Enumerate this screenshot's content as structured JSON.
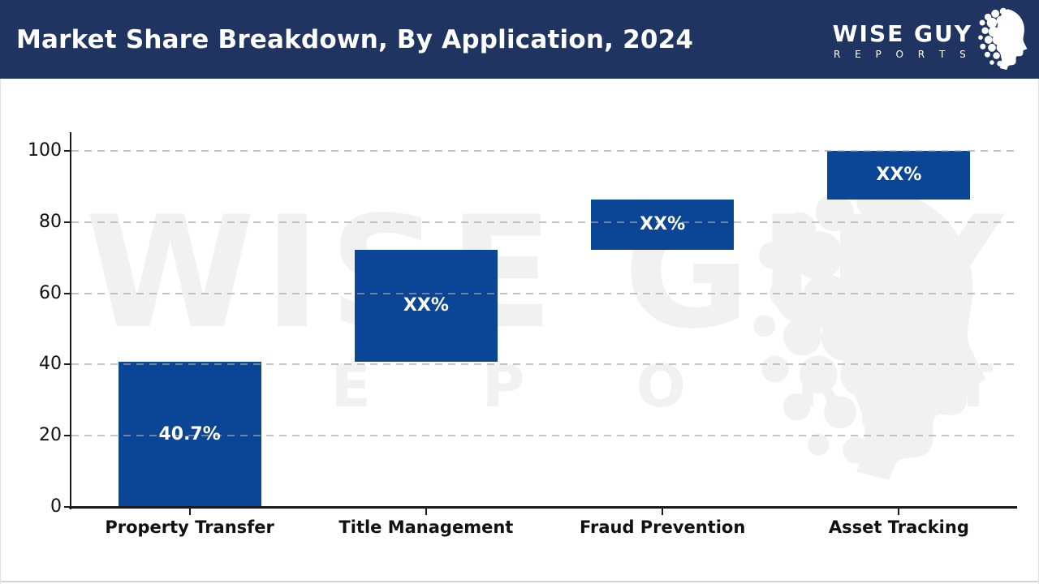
{
  "header": {
    "title": "Market Share Breakdown, By Application, 2024",
    "logo": {
      "line1": "WISE GUY",
      "line2": "R E P O R T S"
    }
  },
  "watermark": {
    "line1": "WISE GUY",
    "line2": "R E P O R T S"
  },
  "colors": {
    "header_bg": "#1f3460",
    "bar": "#0b4596",
    "bar_label": "#ffffff",
    "watermark": "#f1f1f1",
    "axis": "#1a1a1a"
  },
  "chart_data": {
    "type": "bar",
    "subtype": "waterfall",
    "title": "Market Share Breakdown, By Application, 2024",
    "categories": [
      "Property Transfer",
      "Title Management",
      "Fraud Prevention",
      "Asset Tracking"
    ],
    "segments": [
      {
        "category": "Property Transfer",
        "start": 0,
        "end": 40.7,
        "label": "40.7%"
      },
      {
        "category": "Title Management",
        "start": 40.7,
        "end": 72.2,
        "label": "XX%"
      },
      {
        "category": "Fraud Prevention",
        "start": 72.2,
        "end": 86.3,
        "label": "XX%"
      },
      {
        "category": "Asset Tracking",
        "start": 86.3,
        "end": 100,
        "label": "XX%"
      }
    ],
    "y_ticks": [
      0,
      20,
      40,
      60,
      80,
      100
    ],
    "ylim": [
      0,
      100
    ],
    "xlabel": "",
    "ylabel": "",
    "grid": "dashed horizontal, drawn over bars",
    "legend": "none"
  }
}
